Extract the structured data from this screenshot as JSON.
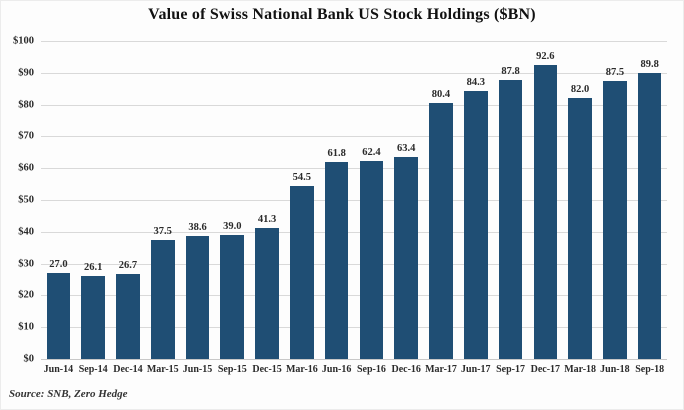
{
  "title": "Value of Swiss National Bank US Stock Holdings ($BN)",
  "source": "Source: SNB, Zero Hedge",
  "colors": {
    "bar": "#1f4e74",
    "gridline": "#d9d9d9",
    "baseline": "#c8c8c8",
    "text": "#2b2b2b",
    "background": "#fdfdfd"
  },
  "chart_data": {
    "type": "bar",
    "title": "Value of Swiss National Bank US Stock Holdings ($BN)",
    "categories": [
      "Jun-14",
      "Sep-14",
      "Dec-14",
      "Mar-15",
      "Jun-15",
      "Sep-15",
      "Dec-15",
      "Mar-16",
      "Jun-16",
      "Sep-16",
      "Dec-16",
      "Mar-17",
      "Jun-17",
      "Sep-17",
      "Dec-17",
      "Mar-18",
      "Jun-18",
      "Sep-18"
    ],
    "values": [
      27.0,
      26.1,
      26.7,
      37.5,
      38.6,
      39.0,
      41.3,
      54.5,
      61.8,
      62.4,
      63.4,
      80.4,
      84.3,
      87.8,
      92.6,
      82.0,
      87.5,
      89.8
    ],
    "value_labels": [
      "27.0",
      "26.1",
      "26.7",
      "37.5",
      "38.6",
      "39.0",
      "41.3",
      "54.5",
      "61.8",
      "62.4",
      "63.4",
      "80.4",
      "84.3",
      "87.8",
      "92.6",
      "82.0",
      "87.5",
      "89.8"
    ],
    "xlabel": "",
    "ylabel": "",
    "ylim": [
      0,
      100
    ],
    "ytick_step": 10,
    "ytick_labels": [
      "$0",
      "$10",
      "$20",
      "$30",
      "$40",
      "$50",
      "$60",
      "$70",
      "$80",
      "$90",
      "$100"
    ],
    "grid": true,
    "legend": false,
    "source": "Source: SNB, Zero Hedge"
  }
}
